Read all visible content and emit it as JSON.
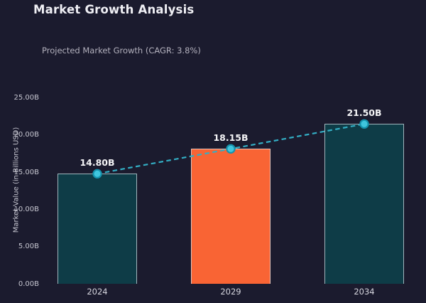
{
  "chart_data": {
    "type": "bar",
    "title": "Market Growth Analysis",
    "subtitle": "Projected Market Growth (CAGR: 3.8%)",
    "xlabel": "",
    "ylabel": "Market Value (in Billions USD)",
    "categories": [
      "2024",
      "2029",
      "2034"
    ],
    "values": [
      14.8,
      18.15,
      21.5
    ],
    "value_labels": [
      "14.80B",
      "18.15B",
      "21.50B"
    ],
    "ylim": [
      0,
      25
    ],
    "ytick_values": [
      0,
      5,
      10,
      15,
      20,
      25
    ],
    "ytick_labels": [
      "0.00B",
      "5.00B",
      "10.00B",
      "15.00B",
      "20.00B",
      "25.00B"
    ],
    "grid": false,
    "legend": "none",
    "overlay_line": {
      "style": "dashed",
      "x": [
        "2024",
        "2029",
        "2034"
      ],
      "y": [
        14.8,
        18.15,
        21.5
      ]
    },
    "colors": {
      "background": "#1b1b2e",
      "bar_fills": [
        "#0e3c47",
        "#f96434",
        "#0e3c47"
      ],
      "bar_edge": "rgba(222,234,240,0.7)",
      "line": "#33aec4",
      "marker_fill": "#3fc6de",
      "marker_edge": "#1593ad",
      "title_text": "#efeff4",
      "subtitle_text": "#b3b1bd",
      "axis_text": "#c6c6d0",
      "xtick_text": "#d6d6de",
      "value_label_text": "#f4f4f6"
    }
  }
}
